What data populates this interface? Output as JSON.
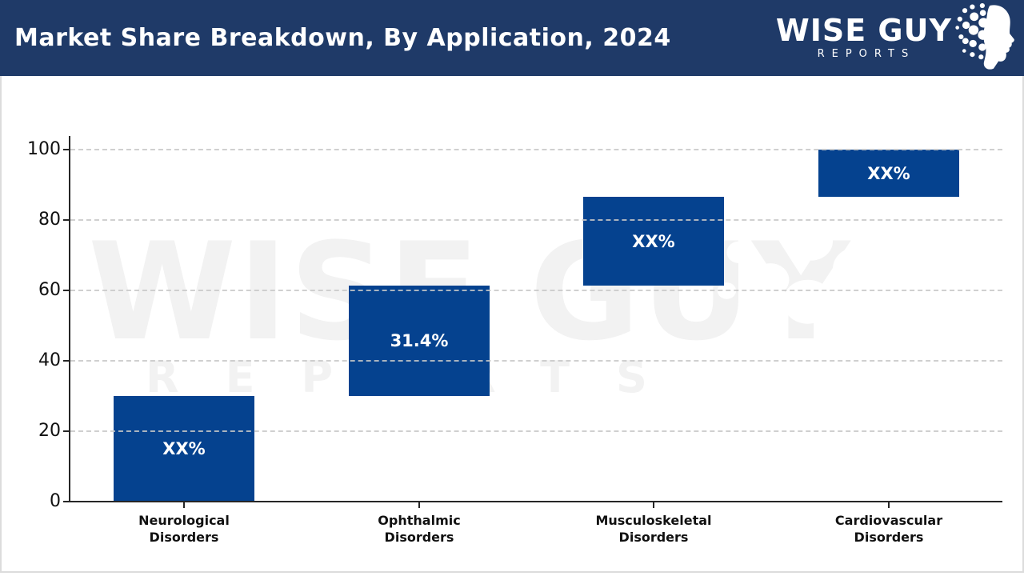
{
  "header": {
    "title": "Market Share Breakdown, By Application, 2024",
    "logo": {
      "line1": "WISE GUY",
      "line2": "REPORTS"
    }
  },
  "watermark": {
    "line1": "WISE GUY",
    "line2": "REPORTS"
  },
  "colors": {
    "header_bg": "#1f3a68",
    "bar": "#05428f",
    "axis": "#262626",
    "grid": "#cccccc",
    "bar_label": "#ffffff",
    "watermark": "#f2f2f2"
  },
  "chart_data": {
    "type": "bar",
    "subtype": "waterfall",
    "title": "Market Share Breakdown, By Application, 2024",
    "categories": [
      "Neurological Disorders",
      "Ophthalmic Disorders",
      "Musculoskeletal Disorders",
      "Cardiovascular Disorders"
    ],
    "category_lines": [
      [
        "Neurological",
        "Disorders"
      ],
      [
        "Ophthalmic",
        "Disorders"
      ],
      [
        "Musculoskeletal",
        "Disorders"
      ],
      [
        "Cardiovascular",
        "Disorders"
      ]
    ],
    "segments": [
      {
        "category": "Neurological Disorders",
        "start": 0,
        "end": 30,
        "label": "XX%"
      },
      {
        "category": "Ophthalmic Disorders",
        "start": 30,
        "end": 61.4,
        "label": "31.4%",
        "value": 31.4
      },
      {
        "category": "Musculoskeletal Disorders",
        "start": 61.4,
        "end": 86.5,
        "label": "XX%"
      },
      {
        "category": "Cardiovascular Disorders",
        "start": 86.5,
        "end": 100,
        "label": "XX%"
      }
    ],
    "ylim": [
      0,
      100
    ],
    "yticks": [
      0,
      20,
      40,
      60,
      80,
      100
    ],
    "xlabel": "",
    "ylabel": "",
    "grid": "horizontal-dashed",
    "legend": "none"
  }
}
